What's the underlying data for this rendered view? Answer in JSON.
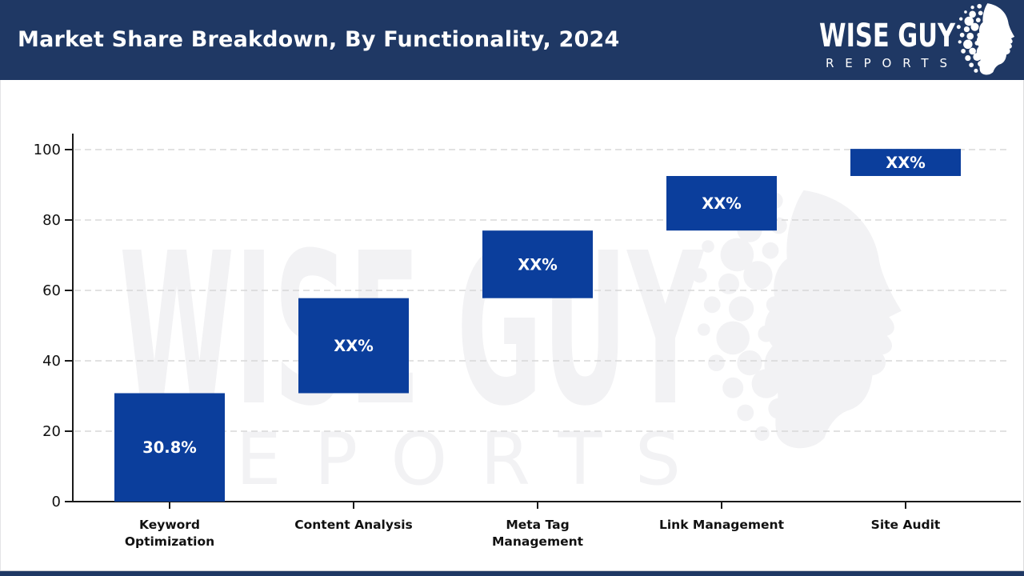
{
  "header": {
    "title": "Market Share Breakdown, By Functionality, 2024"
  },
  "logo": {
    "brand": "WISE GUY",
    "sub": "REPORTS",
    "head_icon": "wiseguy-head-icon"
  },
  "watermark": {
    "brand": "WISE GUY",
    "sub": "REPORTS"
  },
  "colors": {
    "header_bg": "#1f3864",
    "footer_bg": "#1f3864",
    "bar": "#0b3e9c",
    "bar_label": "#ffffff",
    "grid": "#d8d8d8",
    "axis": "#1a1a1a",
    "watermark": "#f2f2f4",
    "title_text": "#ffffff"
  },
  "chart_data": {
    "type": "bar",
    "variant": "waterfall-floating-bars",
    "title": "Market Share Breakdown, By Functionality, 2024",
    "categories": [
      "Keyword Optimization",
      "Content Analysis",
      "Meta Tag Management",
      "Link Management",
      "Site Audit"
    ],
    "segments": [
      {
        "category": "Keyword Optimization",
        "category_lines": [
          "Keyword",
          "Optimization"
        ],
        "start": 0,
        "end": 30.8,
        "label": "30.8%"
      },
      {
        "category": "Content Analysis",
        "category_lines": [
          "Content Analysis"
        ],
        "start": 30.8,
        "end": 57.8,
        "label": "XX%"
      },
      {
        "category": "Meta Tag Management",
        "category_lines": [
          "Meta Tag",
          "Management"
        ],
        "start": 57.8,
        "end": 77.0,
        "label": "XX%"
      },
      {
        "category": "Link Management",
        "category_lines": [
          "Link Management"
        ],
        "start": 77.0,
        "end": 92.5,
        "label": "XX%"
      },
      {
        "category": "Site Audit",
        "category_lines": [
          "Site Audit"
        ],
        "start": 92.5,
        "end": 100.2,
        "label": "XX%"
      }
    ],
    "y_ticks": [
      0,
      20,
      40,
      60,
      80,
      100
    ],
    "ylim": [
      0,
      104.5
    ],
    "xlabel": "",
    "ylabel": "",
    "grid": "horizontal-dashed",
    "legend": "none",
    "bar_color": "#0b3e9c"
  }
}
